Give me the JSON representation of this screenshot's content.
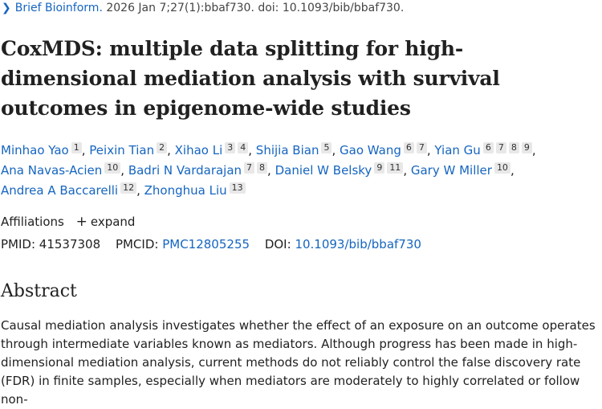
{
  "citation": {
    "journal": "Brief Bioinform.",
    "details": " 2026 Jan 7;27(1):bbaf730. doi: 10.1093/bib/bbaf730."
  },
  "title": "CoxMDS: multiple data splitting for high-dimensional mediation analysis with survival outcomes in epigenome-wide studies",
  "authors": [
    {
      "name": "Minhao Yao",
      "affs": [
        "1"
      ]
    },
    {
      "name": "Peixin Tian",
      "affs": [
        "2"
      ]
    },
    {
      "name": "Xihao Li",
      "affs": [
        "3",
        "4"
      ]
    },
    {
      "name": "Shijia Bian",
      "affs": [
        "5"
      ]
    },
    {
      "name": "Gao Wang",
      "affs": [
        "6",
        "7"
      ]
    },
    {
      "name": "Yian Gu",
      "affs": [
        "6",
        "7",
        "8",
        "9"
      ]
    },
    {
      "name": "Ana Navas-Acien",
      "affs": [
        "10"
      ]
    },
    {
      "name": "Badri N Vardarajan",
      "affs": [
        "7",
        "8"
      ]
    },
    {
      "name": "Daniel W Belsky",
      "affs": [
        "9",
        "11"
      ]
    },
    {
      "name": "Gary W Miller",
      "affs": [
        "10"
      ]
    },
    {
      "name": "Andrea A Baccarelli",
      "affs": [
        "12"
      ]
    },
    {
      "name": "Zhonghua Liu",
      "affs": [
        "13"
      ]
    }
  ],
  "affiliations": {
    "label": "Affiliations",
    "expand_label": "expand"
  },
  "ids": {
    "pmid_label": "PMID:",
    "pmid": "41537308",
    "pmcid_label": "PMCID:",
    "pmcid": "PMC12805255",
    "doi_label": "DOI:",
    "doi": "10.1093/bib/bbaf730"
  },
  "abstract": {
    "heading": "Abstract",
    "text": "Causal mediation analysis investigates whether the effect of an exposure on an outcome operates through intermediate variables known as mediators. Although progress has been made in high-dimensional mediation analysis, current methods do not reliably control the false discovery rate (FDR) in finite samples, especially when mediators are moderately to highly correlated or follow non-"
  }
}
